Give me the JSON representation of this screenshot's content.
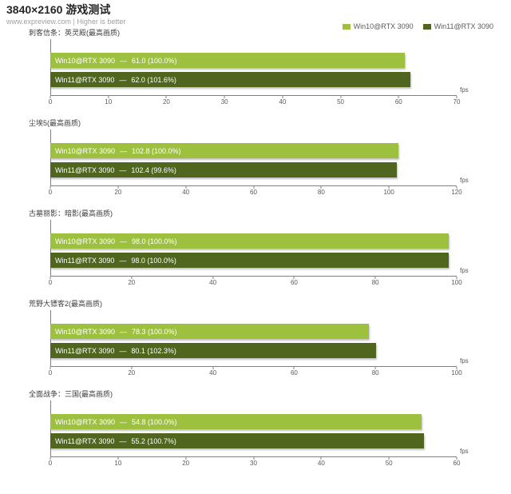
{
  "header": {
    "title": "3840×2160 游戏测试",
    "subtitle": "www.expreview.com | Higher is better"
  },
  "legend": [
    {
      "label": "Win10@RTX 3090",
      "color": "#9dc13f"
    },
    {
      "label": "Win11@RTX 3090",
      "color": "#50661f"
    }
  ],
  "separator": "—",
  "colors": {
    "win10": "#9dc13f",
    "win11": "#50661f",
    "axis": "#808080"
  },
  "chart_data": [
    {
      "type": "bar",
      "title": "刺客信条：英灵殿(最高画质)",
      "orientation": "horizontal",
      "unit": "fps",
      "xlim": [
        0,
        70
      ],
      "ticks": [
        0,
        10,
        20,
        30,
        40,
        50,
        60,
        70
      ],
      "series": [
        {
          "name": "Win10@RTX 3090",
          "value": 61.0,
          "value_text": "61.0 (100.0%)",
          "color": "#9dc13f"
        },
        {
          "name": "Win11@RTX 3090",
          "value": 62.0,
          "value_text": "62.0 (101.6%)",
          "color": "#50661f"
        }
      ]
    },
    {
      "type": "bar",
      "title": "尘埃5(最高画质)",
      "orientation": "horizontal",
      "unit": "fps",
      "xlim": [
        0,
        120
      ],
      "ticks": [
        0,
        20,
        40,
        60,
        80,
        100,
        120
      ],
      "series": [
        {
          "name": "Win10@RTX 3090",
          "value": 102.8,
          "value_text": "102.8 (100.0%)",
          "color": "#9dc13f"
        },
        {
          "name": "Win11@RTX 3090",
          "value": 102.4,
          "value_text": "102.4 (99.6%)",
          "color": "#50661f"
        }
      ]
    },
    {
      "type": "bar",
      "title": "古墓丽影：暗影(最高画质)",
      "orientation": "horizontal",
      "unit": "fps",
      "xlim": [
        0,
        100
      ],
      "ticks": [
        0,
        20,
        40,
        60,
        80,
        100
      ],
      "series": [
        {
          "name": "Win10@RTX 3090",
          "value": 98.0,
          "value_text": "98.0 (100.0%)",
          "color": "#9dc13f"
        },
        {
          "name": "Win11@RTX 3090",
          "value": 98.0,
          "value_text": "98.0 (100.0%)",
          "color": "#50661f"
        }
      ]
    },
    {
      "type": "bar",
      "title": "荒野大镖客2(最高画质)",
      "orientation": "horizontal",
      "unit": "fps",
      "xlim": [
        0,
        100
      ],
      "ticks": [
        0,
        20,
        40,
        60,
        80,
        100
      ],
      "series": [
        {
          "name": "Win10@RTX 3090",
          "value": 78.3,
          "value_text": "78.3 (100.0%)",
          "color": "#9dc13f"
        },
        {
          "name": "Win11@RTX 3090",
          "value": 80.1,
          "value_text": "80.1 (102.3%)",
          "color": "#50661f"
        }
      ]
    },
    {
      "type": "bar",
      "title": "全面战争：三国(最高画质)",
      "orientation": "horizontal",
      "unit": "fps",
      "xlim": [
        0,
        60
      ],
      "ticks": [
        0,
        10,
        20,
        30,
        40,
        50,
        60
      ],
      "series": [
        {
          "name": "Win10@RTX 3090",
          "value": 54.8,
          "value_text": "54.8 (100.0%)",
          "color": "#9dc13f"
        },
        {
          "name": "Win11@RTX 3090",
          "value": 55.2,
          "value_text": "55.2 (100.7%)",
          "color": "#50661f"
        }
      ]
    }
  ]
}
